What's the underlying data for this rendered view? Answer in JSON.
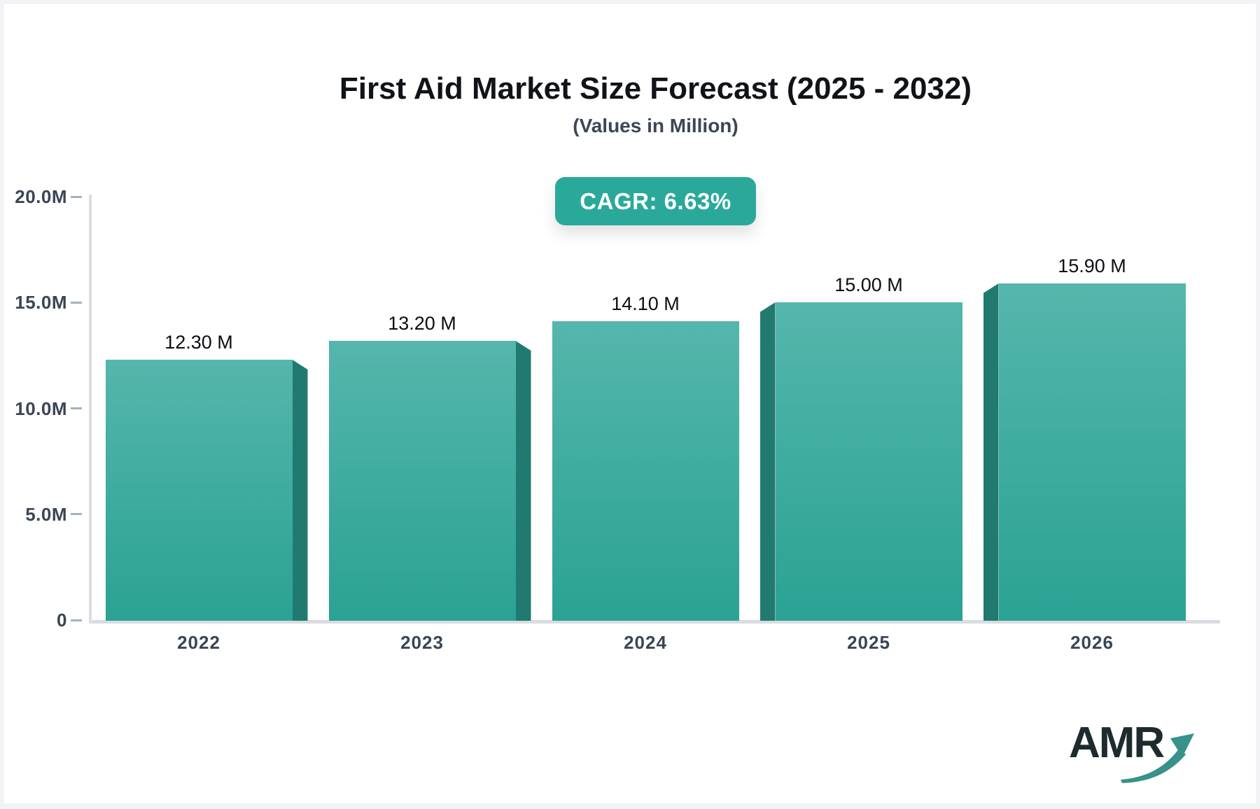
{
  "page": {
    "background_color": "#f1f3f7",
    "card_color": "#ffffff"
  },
  "header": {
    "title": "First Aid Market Size Forecast (2025 - 2032)",
    "subtitle": "(Values in Million)"
  },
  "badge": {
    "label": "CAGR: 6.63%",
    "background": "#2aa99a",
    "text_color": "#ffffff"
  },
  "chart_data": {
    "type": "bar",
    "categories": [
      "2022",
      "2023",
      "2024",
      "2025",
      "2026"
    ],
    "values": [
      12.3,
      13.2,
      14.1,
      15.0,
      15.9
    ],
    "bar_labels": [
      "12.30 M",
      "13.20 M",
      "14.10 M",
      "15.00 M",
      "15.90 M"
    ],
    "title": "First Aid Market Size Forecast (2025 - 2032)",
    "subtitle": "(Values in Million)",
    "xlabel": "",
    "ylabel": "",
    "ylim": [
      0,
      20
    ],
    "yticks": [
      {
        "value": 20,
        "label": "20.0M"
      },
      {
        "value": 15,
        "label": "15.0M"
      },
      {
        "value": 10,
        "label": "10.0M"
      },
      {
        "value": 5,
        "label": "5.0M"
      },
      {
        "value": 0,
        "label": "0"
      }
    ],
    "grid": false,
    "legend": "none",
    "style_3d_extrusion": [
      "right",
      "right",
      "none",
      "left",
      "left"
    ],
    "bar_face_top_color": "#55b6ac",
    "bar_face_bottom_color": "#2aa294",
    "bar_side_color": "#217a70",
    "axis_color": "#d9dce1",
    "tick_color": "#a9b0b8",
    "label_color": "#3a4554",
    "value_label_color": "#0b0e12"
  },
  "logo": {
    "text": "AMR",
    "text_color": "#1d2b2e",
    "arrow_color": "#38918a"
  }
}
